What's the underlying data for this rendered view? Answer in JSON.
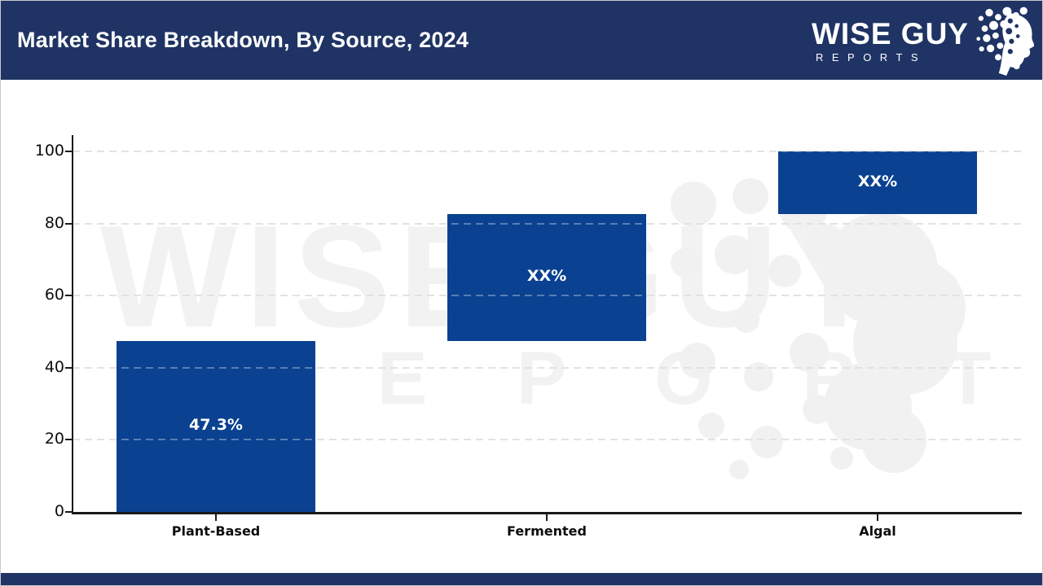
{
  "header": {
    "title": "Market Share Breakdown, By Source, 2024",
    "bg_color": "#1f3364",
    "logo": {
      "line1": "WISE GUY",
      "line2": "REPORTS"
    }
  },
  "watermark": {
    "line1": "WISE GUY",
    "line2": "R E P O R T S"
  },
  "footer": {
    "bg_color": "#1f3364"
  },
  "chart_data": {
    "type": "bar",
    "subtype": "waterfall",
    "title": "Market Share Breakdown, By Source, 2024",
    "categories": [
      "Plant-Based",
      "Fermented",
      "Algal"
    ],
    "segments": [
      {
        "category": "Plant-Based",
        "start": 0,
        "end": 47.3,
        "label": "47.3%"
      },
      {
        "category": "Fermented",
        "start": 47.3,
        "end": 82.6,
        "label": "XX%"
      },
      {
        "category": "Algal",
        "start": 82.6,
        "end": 100,
        "label": "XX%"
      }
    ],
    "bar_color": "#0a4191",
    "value_label_color": "#ffffff",
    "ylim": [
      0,
      100
    ],
    "yticks": [
      0,
      20,
      40,
      60,
      80,
      100
    ],
    "grid": "dashed-horizontal",
    "legend": "none",
    "xlabel": "",
    "ylabel": ""
  }
}
